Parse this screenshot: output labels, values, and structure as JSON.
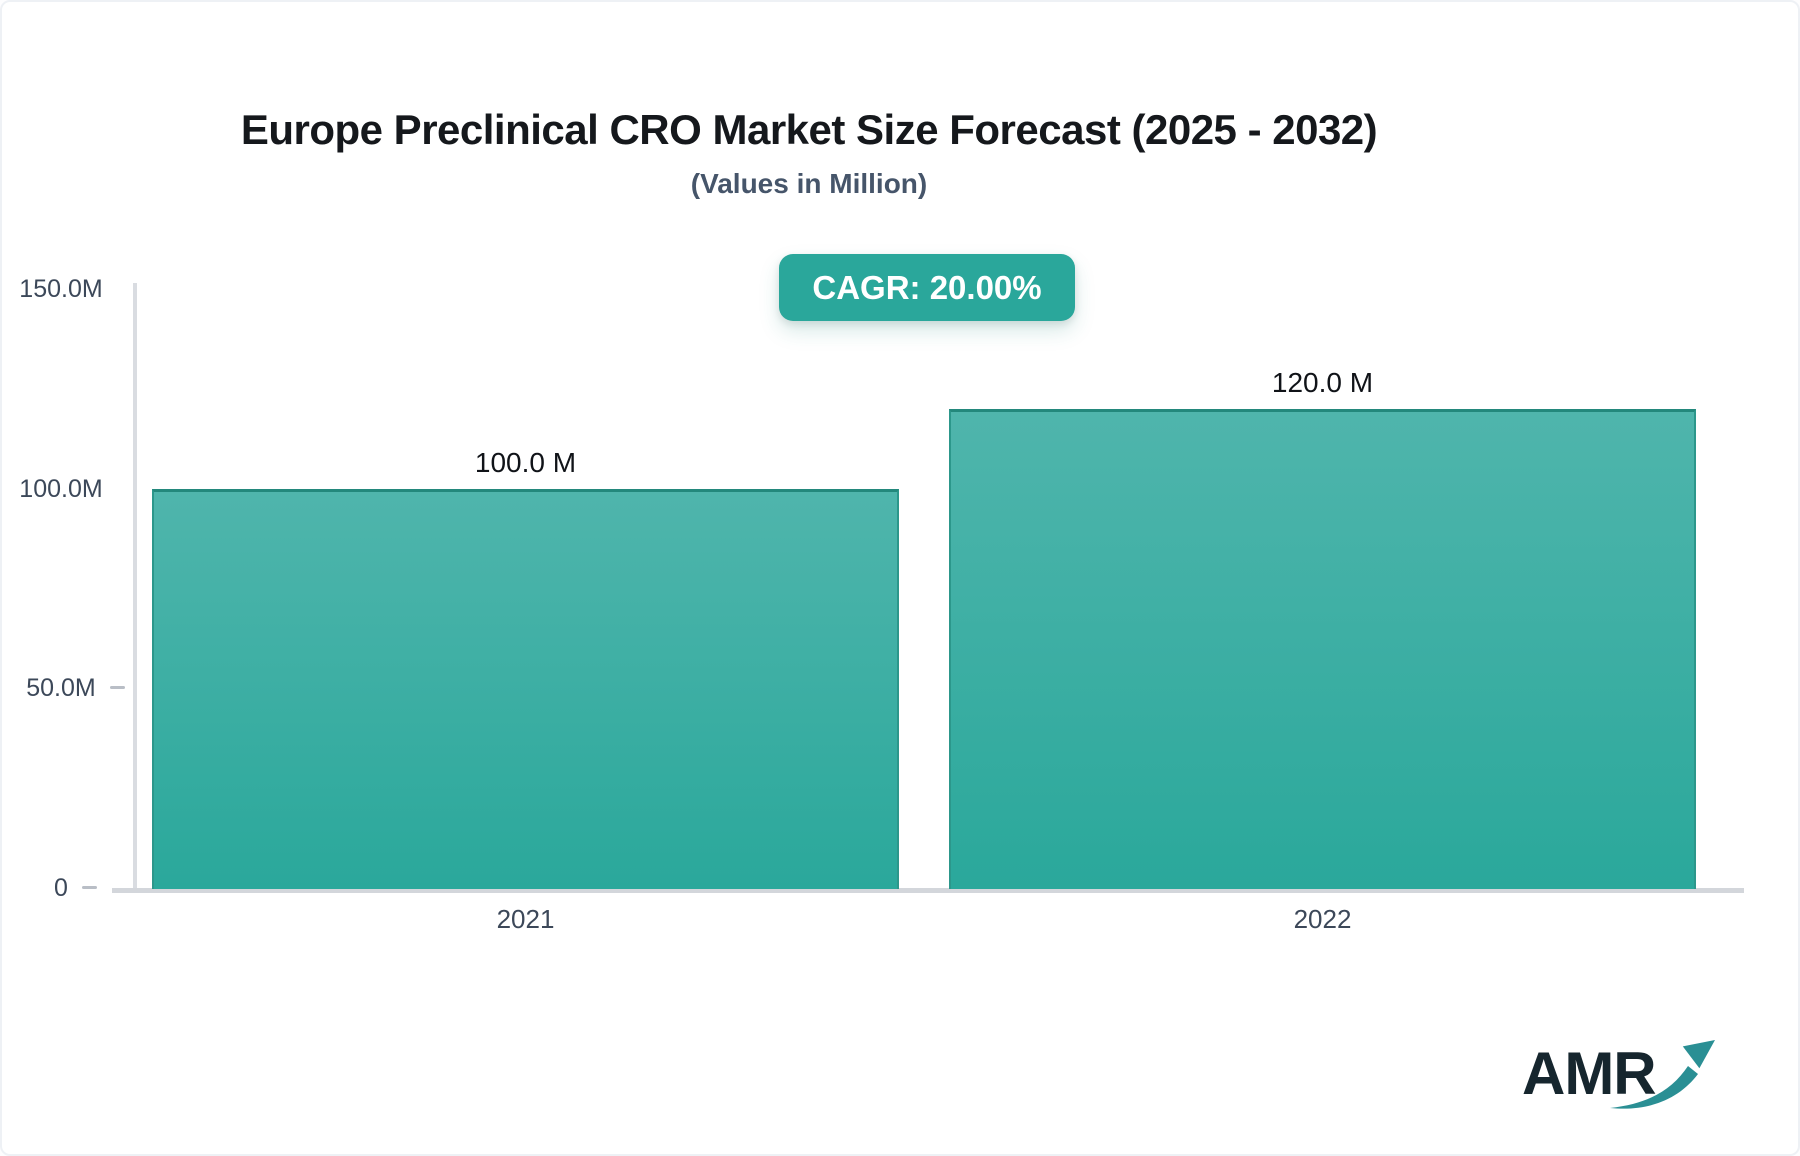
{
  "header": {
    "title": "Europe Preclinical CRO Market Size Forecast (2025 - 2032)",
    "subtitle": "(Values in Million)"
  },
  "badge": {
    "label": "CAGR: 20.00%",
    "background": "#2aa79b",
    "text_color": "#ffffff"
  },
  "chart_data": {
    "type": "bar",
    "title": "Europe Preclinical CRO Market Size Forecast (2025 - 2032)",
    "subtitle": "(Values in Million)",
    "cagr_percent": "20.00%",
    "categories": [
      "2021",
      "2022"
    ],
    "values": [
      100.0,
      120.0
    ],
    "value_labels": [
      "100.0 M",
      "120.0 M"
    ],
    "unit": "Million",
    "ylim": [
      0,
      150
    ],
    "yticks": [
      {
        "label": "150.0M",
        "value": 150
      },
      {
        "label": "100.0M",
        "value": 100
      },
      {
        "label": "50.0M",
        "value": 50
      },
      {
        "label": "0",
        "value": 0
      }
    ],
    "grid": false,
    "legend": false,
    "colors": {
      "bar_gradient_top": "#4fb5ac",
      "bar_gradient_bottom": "#2aa89b",
      "bar_stroke": "#23887c",
      "axis_line": "#d3d6db"
    }
  },
  "branding": {
    "logo_text": "AMR",
    "logo_text_color": "#16262e",
    "logo_arrow_color": "#2a8f94"
  }
}
